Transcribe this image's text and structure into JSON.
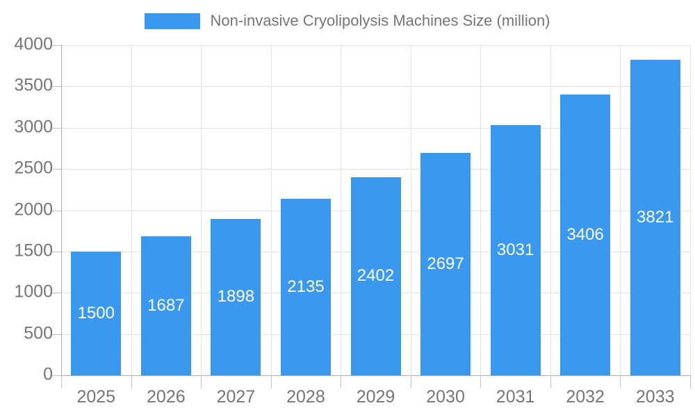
{
  "chart_data": {
    "type": "bar",
    "title": "",
    "legend": "Non-invasive Cryolipolysis Machines Size (million)",
    "categories": [
      "2025",
      "2026",
      "2027",
      "2028",
      "2029",
      "2030",
      "2031",
      "2032",
      "2033"
    ],
    "values": [
      1500,
      1687,
      1898,
      2135,
      2402,
      2697,
      3031,
      3406,
      3821
    ],
    "xlabel": "",
    "ylabel": "",
    "ylim": [
      0,
      4000
    ],
    "ytick_step": 500,
    "grid": true,
    "legend_position": "top-center",
    "bar_color": "#3A99EF",
    "bar_label_color": "#ffffff",
    "axis_line_color": "#acacac",
    "tick_mark_color": "#c2c2c2",
    "grid_line_color": "#e3e3e3",
    "tick_label_color": "#757575"
  }
}
